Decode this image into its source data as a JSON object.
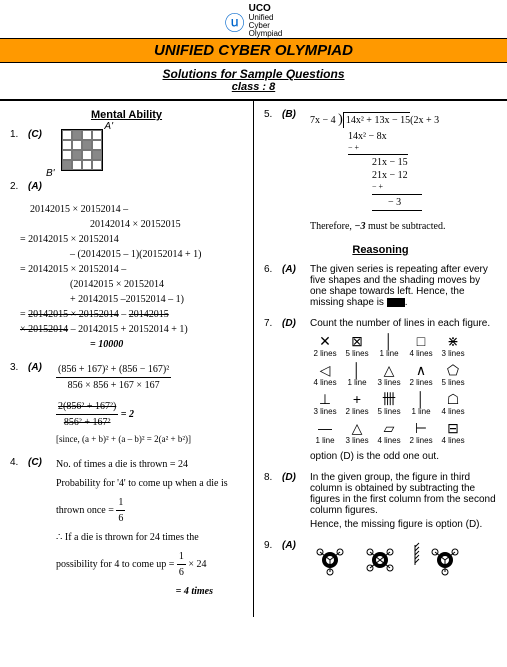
{
  "header": {
    "logo_letter": "ⓤ",
    "logo_main": "UCO",
    "logo_line1": "Unified",
    "logo_line2": "Cyber",
    "logo_line3": "Olympiad",
    "title": "UNIFIED CYBER OLYMPIAD",
    "subtitle": "Solutions for Sample Questions",
    "class": "class : 8"
  },
  "left": {
    "section": "Mental Ability",
    "q1": {
      "num": "1.",
      "ans": "(C)"
    },
    "q2": {
      "num": "2.",
      "ans": "(A)",
      "line1": "20142015 × 20152014 –",
      "line2": "20142014 × 20152015",
      "line3": "= 20142015 × 20152014",
      "line4": "– (20142015 – 1)(20152014 + 1)",
      "line5": "= 20142015 × 20152014 –",
      "line6": "(20142015 × 20152014",
      "line7": "+ 20142015 –20152014 – 1)",
      "line8": "= 20142015 × 20152014 – 20142015",
      "line9": "× 20152014 – 20142015 + 20152014 + 1)",
      "result": "= 10000"
    },
    "q3": {
      "num": "3.",
      "ans": "(A)",
      "frac1_num": "(856 + 167)² + (856 − 167)²",
      "frac1_den": "856 × 856 + 167 × 167",
      "frac2_num": "2(856² + 167²)",
      "frac2_den": "856² + 167²",
      "eq": "= 2",
      "note": "[since, (a + b)² + (a – b)² = 2(a² + b²)]"
    },
    "q4": {
      "num": "4.",
      "ans": "(C)",
      "line1": "No. of times a die is thrown = 24",
      "line2": "Probability for '4' to come up when a die is",
      "line3": "thrown once =",
      "frac1_num": "1",
      "frac1_den": "6",
      "line4": "∴ If a die is thrown for 24 times the",
      "line5": "possibility for 4 to come up =",
      "frac2_num": "1",
      "frac2_den": "6",
      "line6": "× 24",
      "result": "= 4 times"
    }
  },
  "right": {
    "q5": {
      "num": "5.",
      "ans": "(B)",
      "divisor": "7x − 4",
      "dividend": "14x² + 13x − 15",
      "quotient": "2x + 3",
      "s1": "14x² − 8x",
      "s2": "−    +",
      "s3": "21x − 15",
      "s4": "21x − 12",
      "s5": "−    +",
      "s6": "− 3",
      "concl": "Therefore, −3 must be subtracted.",
      "concl_bold": "−3"
    },
    "section": "Reasoning",
    "q6": {
      "num": "6.",
      "ans": "(A)",
      "text": "The given series is repeating after every five shapes and the shading moves by one shape towards left.  Hence, the missing shape is"
    },
    "q7": {
      "num": "7.",
      "ans": "(D)",
      "text": "Count the number of lines in each figure.",
      "symbols": [
        {
          "g": "✕",
          "l": "2 lines"
        },
        {
          "g": "⊠",
          "l": "5 lines"
        },
        {
          "g": "│",
          "l": "1 line"
        },
        {
          "g": "□",
          "l": "4 lines"
        },
        {
          "g": "⋇",
          "l": "3 lines"
        },
        {
          "g": "◁",
          "l": "4 lines"
        },
        {
          "g": "│",
          "l": "1 line"
        },
        {
          "g": "△",
          "l": "3 lines"
        },
        {
          "g": "∧",
          "l": "2 lines"
        },
        {
          "g": "⬠",
          "l": "5 lines"
        },
        {
          "g": "⊥",
          "l": "3 lines"
        },
        {
          "g": "+",
          "l": "2 lines"
        },
        {
          "g": "卌",
          "l": "5 lines"
        },
        {
          "g": "│",
          "l": "1 line"
        },
        {
          "g": "☖",
          "l": "4 lines"
        },
        {
          "g": "—",
          "l": "1 line"
        },
        {
          "g": "△",
          "l": "3 lines"
        },
        {
          "g": "▱",
          "l": "4 lines"
        },
        {
          "g": "⊢",
          "l": "2 lines"
        },
        {
          "g": "⊟",
          "l": "4 lines"
        }
      ],
      "concl": "option (D) is the odd one out."
    },
    "q8": {
      "num": "8.",
      "ans": "(D)",
      "text": "In the given group, the figure in third column is obtained by subtracting the figures in the first column from the second column figures.",
      "text2": "Hence, the missing figure is option (D)."
    },
    "q9": {
      "num": "9.",
      "ans": "(A)"
    }
  },
  "colors": {
    "orange": "#ff9900",
    "logo": "#0066cc",
    "text": "#000000",
    "background": "#ffffff"
  }
}
